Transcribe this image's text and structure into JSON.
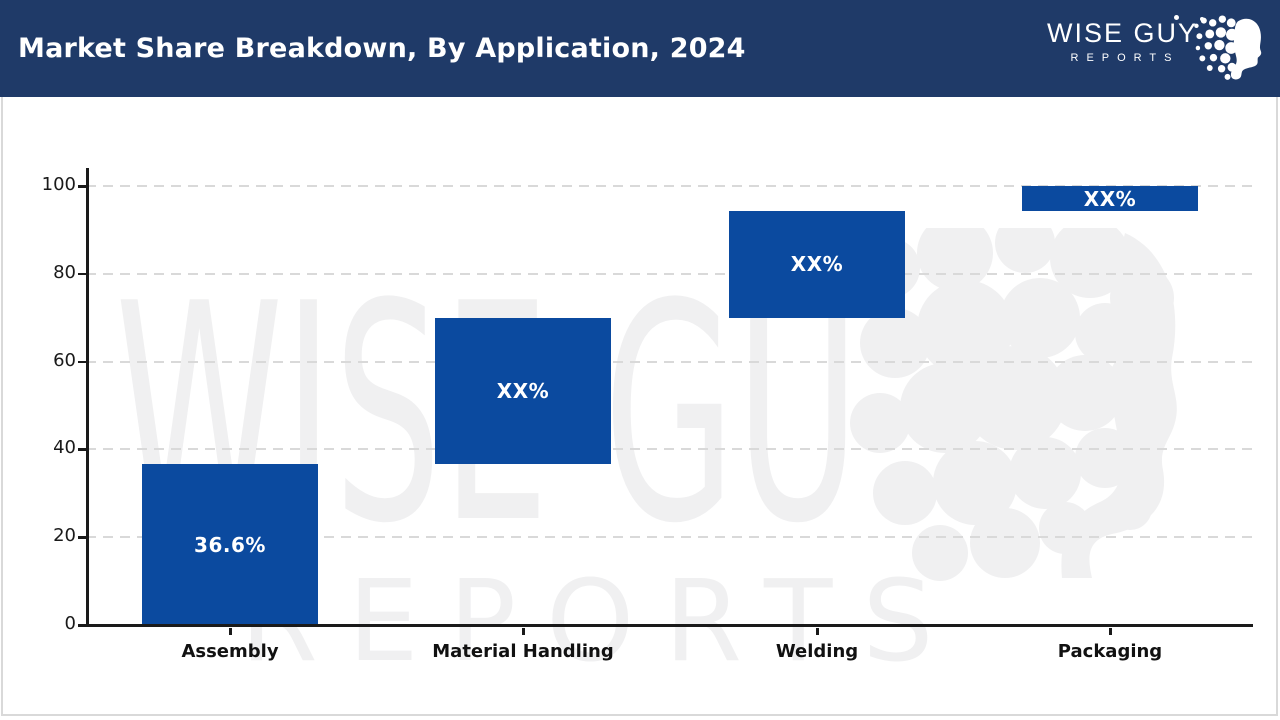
{
  "header": {
    "title": "Market Share Breakdown, By Application, 2024",
    "logo": {
      "name": "WISE GUY",
      "sub": "REPORTS"
    }
  },
  "watermark": {
    "text": "WISE GU",
    "sub": "REPORTS"
  },
  "chart_data": {
    "type": "bar",
    "subtype": "waterfall",
    "title": "Market Share Breakdown, By Application, 2024",
    "categories": [
      "Assembly",
      "Material Handling",
      "Welding",
      "Packaging"
    ],
    "segments": [
      {
        "category": "Assembly",
        "start": 0,
        "end": 36.6,
        "label": "36.6%"
      },
      {
        "category": "Material Handling",
        "start": 36.6,
        "end": 70,
        "label": "XX%"
      },
      {
        "category": "Welding",
        "start": 70,
        "end": 94.3,
        "label": "XX%"
      },
      {
        "category": "Packaging",
        "start": 94.3,
        "end": 100,
        "label": "XX%"
      }
    ],
    "bar_labels": [
      "36.6%",
      "XX%",
      "XX%",
      "XX%"
    ],
    "xlabel": "",
    "ylabel": "",
    "ylim": [
      0,
      100
    ],
    "yticks": [
      0,
      20,
      40,
      60,
      80,
      100
    ],
    "grid": "horizontal-dashed",
    "legend": "none"
  },
  "colors": {
    "header_bg": "#1f3a68",
    "bar": "#0b4a9f",
    "bar_label": "#ffffff",
    "axis": "#1a1a1a",
    "tick_label": "#1a1a1a",
    "category_label": "#111111",
    "grid": "#d9d9d9",
    "watermark": "#f0f0f1",
    "frame_border": "#d9d9d9",
    "title_text": "#ffffff"
  }
}
